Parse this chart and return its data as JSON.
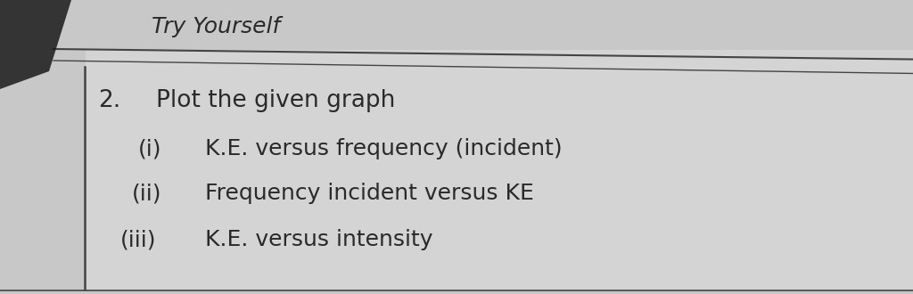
{
  "bg_color": "#c8c8c8",
  "content_bg": "#d8d8d8",
  "header_text": "Try Yourself",
  "font_color": "#2a2a2a",
  "line_color": "#444444",
  "question_number": "2.",
  "question_text": "Plot the given graph",
  "items": [
    {
      "label": "(i)",
      "text": "K.E. versus frequency (incident)"
    },
    {
      "label": "(ii)",
      "text": "Frequency incident versus KE"
    },
    {
      "label": "(iii)",
      "text": "K.E. versus intensity"
    }
  ],
  "question_fontsize": 19,
  "item_fontsize": 18,
  "header_fontsize": 18,
  "figsize": [
    10.24,
    3.3
  ],
  "dpi": 100
}
